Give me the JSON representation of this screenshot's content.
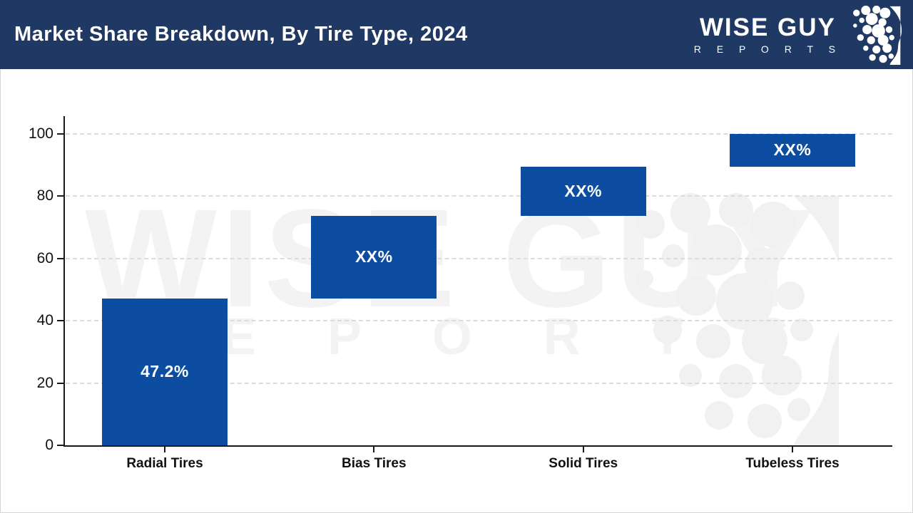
{
  "header": {
    "title": "Market Share Breakdown, By Tire Type, 2024",
    "bg_color": "#1f3864",
    "logo": {
      "name": "WISE GUY",
      "subtitle": "R E P O R T S"
    }
  },
  "chart_data": {
    "type": "bar",
    "subtype": "waterfall",
    "title": "Market Share Breakdown, By Tire Type, 2024",
    "categories": [
      "Radial Tires",
      "Bias Tires",
      "Solid Tires",
      "Tubeless Tires"
    ],
    "segments": [
      {
        "category": "Radial Tires",
        "start": 0,
        "end": 47.2,
        "label": "47.2%"
      },
      {
        "category": "Bias Tires",
        "start": 47.2,
        "end": 73.5,
        "label": "XX%"
      },
      {
        "category": "Solid Tires",
        "start": 73.5,
        "end": 89.3,
        "label": "XX%"
      },
      {
        "category": "Tubeless Tires",
        "start": 89.3,
        "end": 100,
        "label": "XX%"
      }
    ],
    "y_ticks": [
      0,
      20,
      40,
      60,
      80,
      100
    ],
    "ylim": [
      0,
      105
    ],
    "xlabel": "",
    "ylabel": "",
    "legend": "none",
    "grid": {
      "horizontal": true,
      "style": "dashed",
      "color": "#dcdcdc"
    },
    "bar_color": "#0c4da2",
    "bar_label_color": "#ffffff",
    "watermark": {
      "line1": "WISE GUY",
      "line2": "R E P O R T S"
    }
  }
}
